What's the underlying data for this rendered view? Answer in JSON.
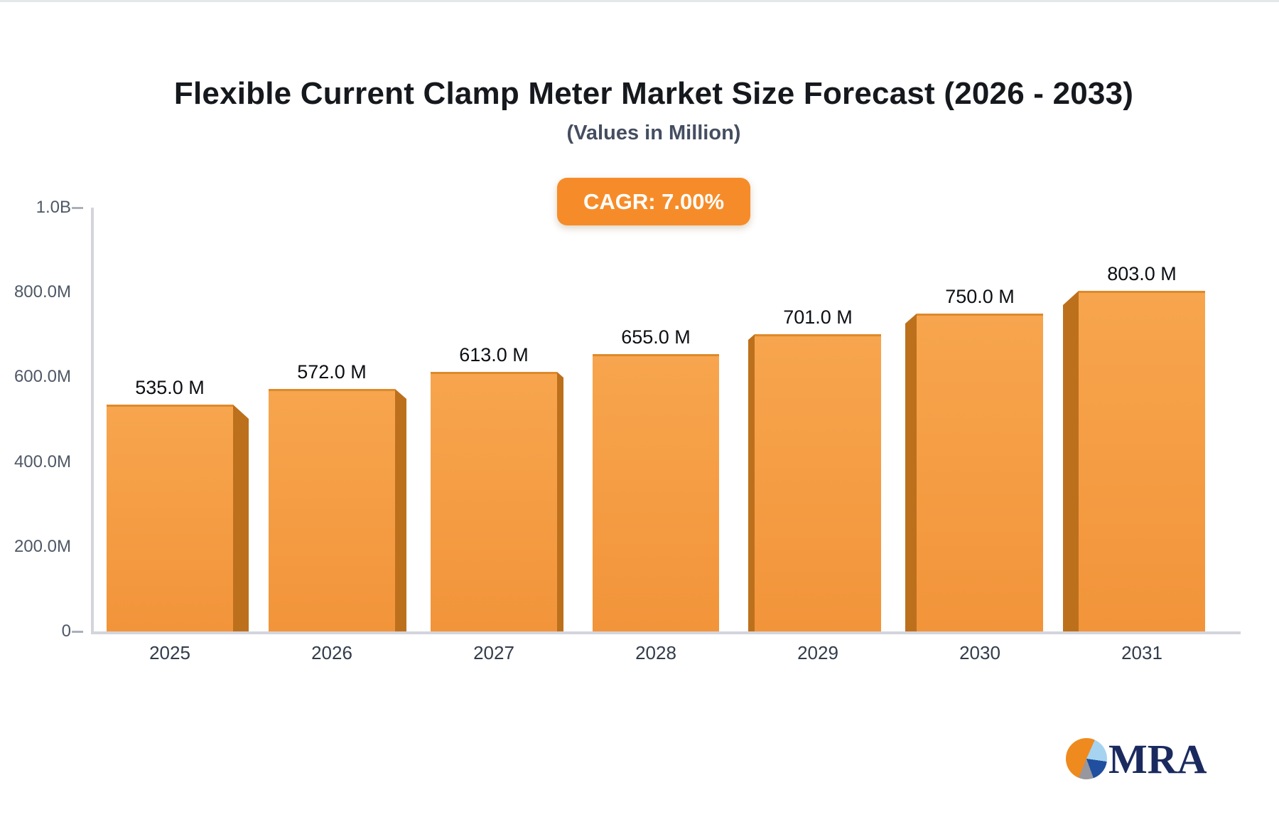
{
  "chart_data": {
    "type": "bar",
    "title": "Flexible Current Clamp Meter Market Size Forecast (2026 - 2033)",
    "subtitle": "(Values in Million)",
    "cagr_label": "CAGR: 7.00%",
    "categories": [
      "2025",
      "2026",
      "2027",
      "2028",
      "2029",
      "2030",
      "2031"
    ],
    "values": [
      535,
      572,
      613,
      655,
      701,
      750,
      803
    ],
    "value_labels": [
      "535.0 M",
      "572.0 M",
      "613.0 M",
      "655.0 M",
      "701.0 M",
      "750.0 M",
      "803.0 M"
    ],
    "xlabel": "",
    "ylabel": "",
    "grid": false,
    "legend": "none",
    "ylim_millions": [
      0,
      1000
    ],
    "y_axis": {
      "ticks": [
        {
          "label": "1.0B",
          "value": 1000
        },
        {
          "label": "800.0M",
          "value": 800
        },
        {
          "label": "600.0M",
          "value": 600
        },
        {
          "label": "400.0M",
          "value": 400
        },
        {
          "label": "200.0M",
          "value": 200
        },
        {
          "label": "0",
          "value": 0
        }
      ]
    }
  },
  "logo": {
    "text": "MRA",
    "icon": "pie-chart-icon"
  },
  "colors": {
    "title": "#15181c",
    "subtitle": "#454e60",
    "badge_bg": "#f68c29",
    "badge_text": "#ffffff",
    "axis_line": "#d3d4dc",
    "tick_dash": "#a9b0ba",
    "y_label": "#4e5866",
    "x_label": "#323c4b",
    "value_label": "#0c0f13",
    "bar_face_top": "#f7a54e",
    "bar_face_bottom": "#f2943a",
    "bar_face_edge": "#dd8a2b",
    "bar_side": "#bd701c",
    "logo_navy": "#1b2a5e",
    "logo_orange": "#ef8a1e",
    "logo_lightblue": "#a6d3f0",
    "logo_blue": "#1f4f9e",
    "logo_gray": "#97979d"
  }
}
